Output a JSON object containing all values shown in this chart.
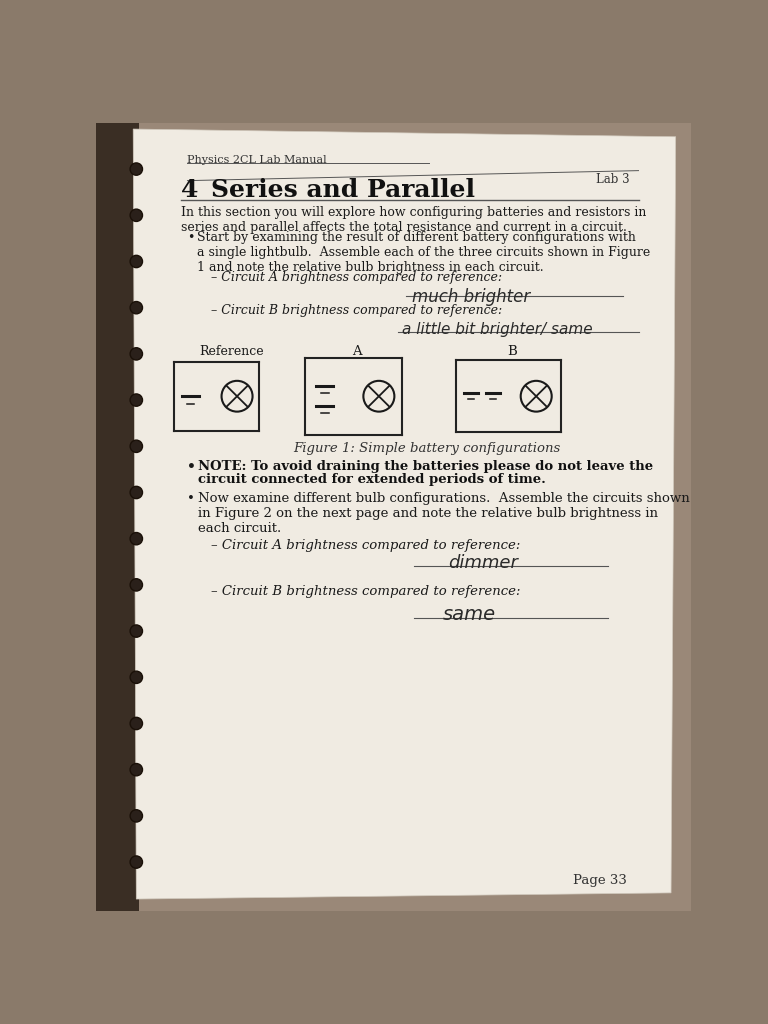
{
  "bg_left_color": "#4a3c2e",
  "bg_right_color": "#b8a898",
  "paper_color": "#f2ede6",
  "paper_shadow": "#c8bfb0",
  "text_color": "#1a1a1a",
  "header_text": "Physics 2CL Lab Manual",
  "lab_number": "Lab 3",
  "section_number": "4",
  "section_title": "Series and Parallel",
  "intro_text": "In this section you will explore how configuring batteries and resistors in\nseries and parallel affects the total resistance and current in a circuit.",
  "bullet1": "Start by examining the result of different battery configurations with\na single lightbulb.  Assemble each of the three circuits shown in Figure\n1 and note the relative bulb brightness in each circuit.",
  "circuit_a_label1": "– Circuit A brightness compared to reference:",
  "circuit_a_answer1": "much brighter",
  "circuit_b_label1": "– Circuit B brightness compared to reference:",
  "circuit_b_answer1": "a little bit brighter/ same",
  "ref_label": "Reference",
  "a_label": "A",
  "b_label": "B",
  "figure1_caption": "Figure 1: Simple battery configurations",
  "note_text": "NOTE: To avoid draining the batteries please do not leave the\ncircuit connected for extended periods of time.",
  "bullet2": "Now examine different bulb configurations.  Assemble the circuits shown\nin Figure 2 on the next page and note the relative bulb brightness in\neach circuit.",
  "circuit_a_label2": "– Circuit A brightness compared to reference:",
  "circuit_a_answer2": "dimmer",
  "circuit_b_label2": "– Circuit B brightness compared to reference:",
  "circuit_b_answer2": "same",
  "page_number": "Page 33"
}
